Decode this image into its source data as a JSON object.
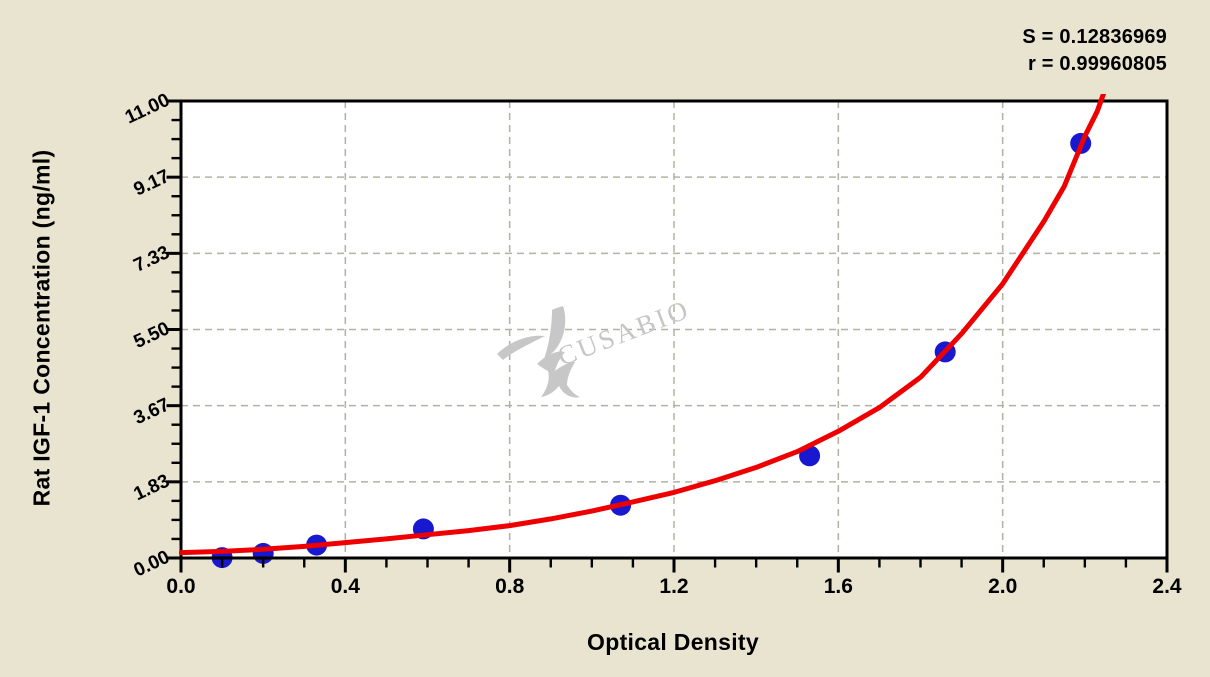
{
  "annotations": {
    "s_label": "S = 0.12836969",
    "r_label": "r = 0.99960805"
  },
  "watermark": {
    "text": "CUSABIO",
    "logo": "cusabio-wings-logo"
  },
  "colors": {
    "background": "#e8e4d0",
    "plot_background": "#ffffff",
    "axis": "#000000",
    "grid": "#b2b2a2",
    "curve": "#ee0000",
    "points": "#1818d0",
    "watermark": "#c7c7c7",
    "text": "#000000"
  },
  "chart_data": {
    "type": "scatter",
    "title": "",
    "xlabel": "Optical Density",
    "ylabel": "Rat IGF-1 Concentration (ng/ml)",
    "xlim": [
      0,
      2.4
    ],
    "ylim": [
      0,
      11.0
    ],
    "x_major_ticks": [
      0.0,
      0.4,
      0.8,
      1.2,
      1.6,
      2.0,
      2.4
    ],
    "x_tick_labels": [
      "0.0",
      "0.4",
      "0.8",
      "1.2",
      "1.6",
      "2.0",
      "2.4"
    ],
    "x_minor_divisions_per_major": 4,
    "y_major_ticks": [
      0.0,
      1.8333,
      3.6667,
      5.5,
      7.3333,
      9.1667,
      11.0
    ],
    "y_tick_labels": [
      "0.00",
      "1.83",
      "3.67",
      "5.50",
      "7.33",
      "9.17",
      "11.00"
    ],
    "y_minor_divisions_per_major": 4,
    "grid": {
      "show": true,
      "style": "dashed",
      "on": "major"
    },
    "legend": null,
    "fit_stats": {
      "S": 0.12836969,
      "r": 0.99960805
    },
    "series": [
      {
        "name": "standard-points",
        "type": "scatter",
        "marker": "circle",
        "color": "#1818d0",
        "x": [
          0.1,
          0.2,
          0.33,
          0.59,
          1.07,
          1.53,
          1.86,
          2.19
        ],
        "y": [
          0.01,
          0.11,
          0.31,
          0.7,
          1.27,
          2.46,
          4.96,
          9.98
        ]
      },
      {
        "name": "fit-curve",
        "type": "line",
        "color": "#ee0000",
        "x": [
          0.0,
          0.1,
          0.2,
          0.3,
          0.4,
          0.5,
          0.6,
          0.7,
          0.8,
          0.9,
          1.0,
          1.1,
          1.2,
          1.3,
          1.4,
          1.5,
          1.6,
          1.7,
          1.8,
          1.9,
          2.0,
          2.1,
          2.15,
          2.2,
          2.23,
          2.25
        ],
        "y": [
          0.13,
          0.16,
          0.21,
          0.28,
          0.37,
          0.46,
          0.56,
          0.66,
          0.78,
          0.94,
          1.13,
          1.35,
          1.58,
          1.86,
          2.18,
          2.56,
          3.05,
          3.62,
          4.35,
          5.4,
          6.6,
          8.1,
          8.95,
          10.15,
          10.75,
          11.3
        ]
      }
    ]
  }
}
